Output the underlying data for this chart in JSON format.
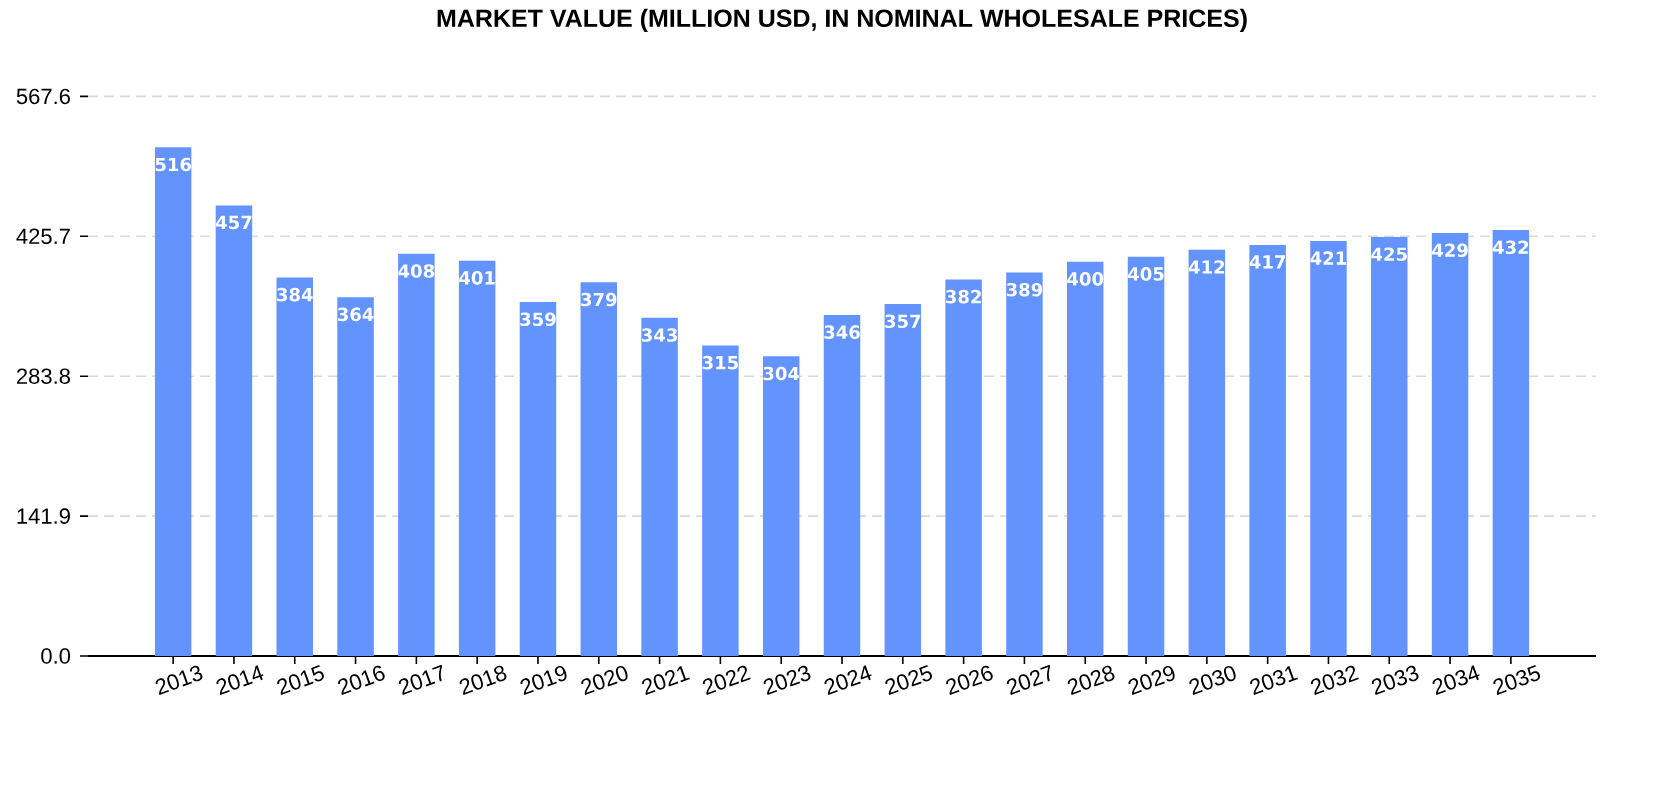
{
  "chart_data": {
    "type": "bar",
    "title": "MARKET VALUE (MILLION USD, IN NOMINAL WHOLESALE PRICES)",
    "categories": [
      "2013",
      "2014",
      "2015",
      "2016",
      "2017",
      "2018",
      "2019",
      "2020",
      "2021",
      "2022",
      "2023",
      "2024",
      "2025",
      "2026",
      "2027",
      "2028",
      "2029",
      "2030",
      "2031",
      "2032",
      "2033",
      "2034",
      "2035"
    ],
    "values": [
      516,
      457,
      384,
      364,
      408,
      401,
      359,
      379,
      343,
      315,
      304,
      346,
      357,
      382,
      389,
      400,
      405,
      412,
      417,
      421,
      425,
      429,
      432
    ],
    "color": "#6394fd",
    "ylim": [
      0,
      567.6
    ],
    "yticks": [
      {
        "value": 0,
        "label": "0.0"
      },
      141.9,
      283.8,
      425.7,
      567.6
    ],
    "grid": "y",
    "data_labels": true
  }
}
